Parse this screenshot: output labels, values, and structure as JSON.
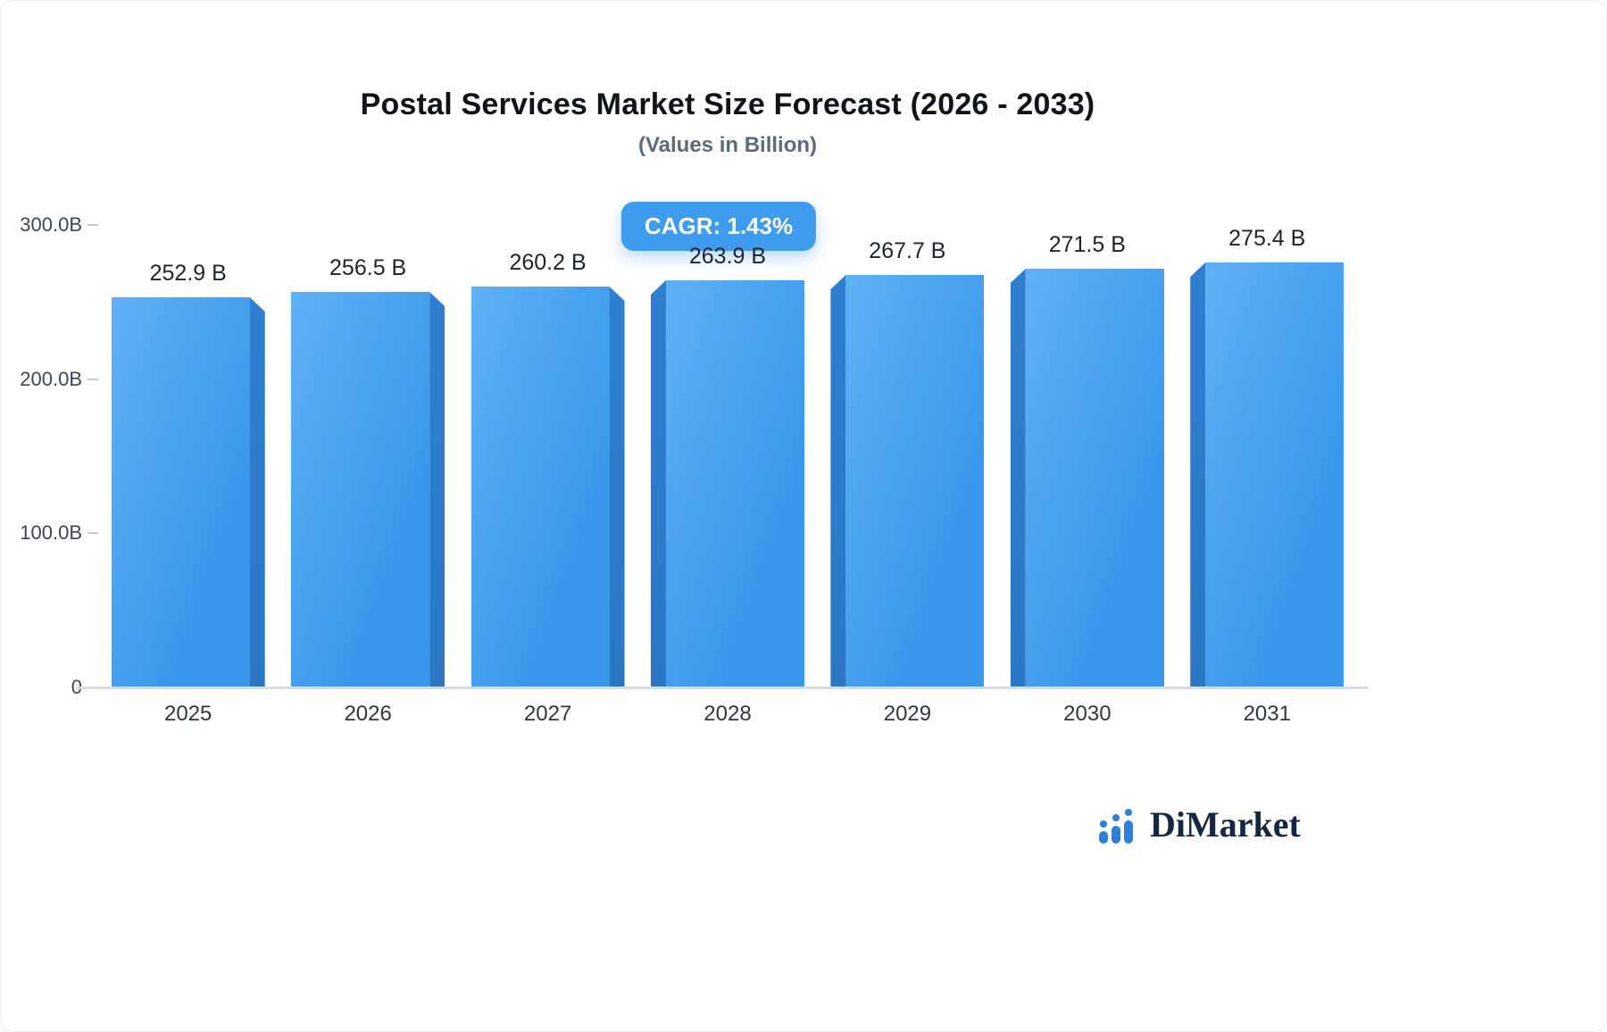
{
  "header": {
    "title": "Postal Services Market Size Forecast (2026 - 2033)",
    "subtitle": "(Values in Billion)"
  },
  "badge": {
    "cagr_label": "CAGR: 1.43%",
    "background_color": "#3e9bed",
    "text_color": "#ffffff"
  },
  "logo": {
    "text": "DiMarket",
    "icon_color": "#2f7ed8",
    "text_color": "#152742"
  },
  "chart_data": {
    "type": "bar",
    "title": "Postal Services Market Size Forecast (2026 - 2033)",
    "subtitle": "(Values in Billion)",
    "categories": [
      "2025",
      "2026",
      "2027",
      "2028",
      "2029",
      "2030",
      "2031"
    ],
    "values": [
      252.9,
      256.5,
      260.2,
      263.9,
      267.7,
      271.5,
      275.4
    ],
    "value_labels": [
      "252.9 B",
      "256.5 B",
      "260.2 B",
      "263.9 B",
      "267.7 B",
      "271.5 B",
      "275.4 B"
    ],
    "ylim": [
      0,
      300
    ],
    "yticks": [
      300,
      200,
      100,
      0
    ],
    "ytick_labels": [
      "300.0B",
      "200.0B",
      "100.0B",
      "0"
    ],
    "xlabel": "",
    "ylabel": "",
    "grid": false,
    "legend": false,
    "bar_color": "#3e9ff0",
    "bar_side_color": "#2b77c6",
    "annotation": "CAGR: 1.43%"
  }
}
